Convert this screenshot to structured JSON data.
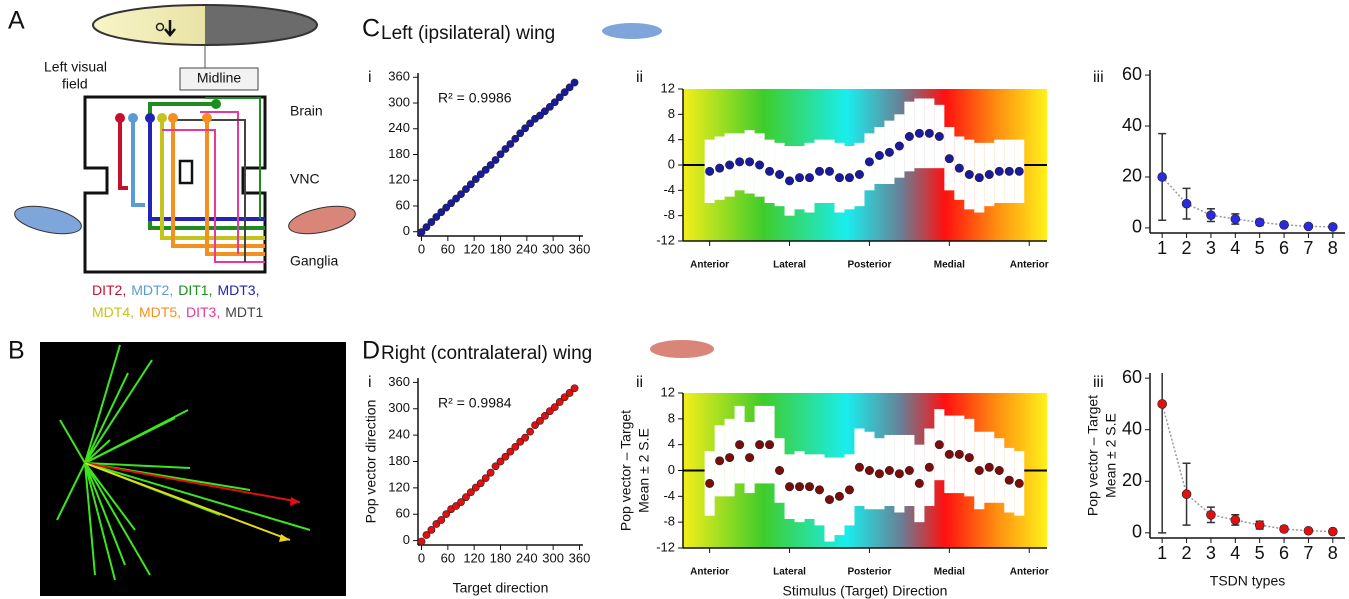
{
  "panel_labels": [
    "A",
    "B",
    "C",
    "D"
  ],
  "sections": [
    {
      "title": "Left (ipsilateral) wing"
    },
    {
      "title": "Right (contralateral) wing"
    }
  ],
  "subpanel_labels": [
    "i",
    "ii",
    "iii"
  ],
  "diagram": {
    "visual_field": [
      "Left  visual",
      "field"
    ],
    "midline": "Midline",
    "regions": [
      "Brain",
      "VNC",
      "Ganglia"
    ],
    "neurons": [
      [
        {
          "label": "DIT2,",
          "color": "#c8102e"
        },
        {
          "label": "MDT2,",
          "color": "#5b9bd5"
        },
        {
          "label": "DIT1,",
          "color": "#1e8c1e"
        },
        {
          "label": "MDT3,",
          "color": "#2323b8"
        }
      ],
      [
        {
          "label": "MDT4,",
          "color": "#c4c41c"
        },
        {
          "label": "MDT5,",
          "color": "#f39020"
        },
        {
          "label": "DIT3,",
          "color": "#e6399b"
        },
        {
          "label": "MDT1",
          "color": "#444444"
        }
      ]
    ]
  },
  "chart_data": [
    {
      "type": "scatter",
      "annotation": "R² = 0.9986",
      "color": "#1a1a9c",
      "x": [
        0,
        11.25,
        22.5,
        33.75,
        45,
        56.25,
        67.5,
        78.75,
        90,
        101.25,
        112.5,
        123.75,
        135,
        146.25,
        157.5,
        168.75,
        180,
        191.25,
        202.5,
        213.75,
        225,
        236.25,
        247.5,
        258.75,
        270,
        281.25,
        292.5,
        303.75,
        315,
        326.25,
        337.5,
        348.75
      ],
      "values": [
        -1,
        10.75,
        22.5,
        34.25,
        45.5,
        56.25,
        66.5,
        77.25,
        87.5,
        99.25,
        110.5,
        122.75,
        134,
        144.25,
        155.5,
        167.25,
        180.5,
        192.75,
        204.5,
        216.75,
        229.5,
        241.25,
        252.5,
        263.25,
        271,
        280.75,
        291,
        301.75,
        313.5,
        325.25,
        336.5,
        347.75
      ],
      "xlim": [
        -8,
        368
      ],
      "ylim": [
        -10,
        370
      ],
      "xticks": [
        0,
        60,
        120,
        180,
        240,
        300,
        360
      ],
      "yticks": [
        0,
        60,
        120,
        180,
        240,
        300,
        360
      ]
    },
    {
      "type": "dot_range",
      "color": "#1a1a9c",
      "x": [
        0,
        11.25,
        22.5,
        33.75,
        45,
        56.25,
        67.5,
        78.75,
        90,
        101.25,
        112.5,
        123.75,
        135,
        146.25,
        157.5,
        168.75,
        180,
        191.25,
        202.5,
        213.75,
        225,
        236.25,
        247.5,
        258.75,
        270,
        281.25,
        292.5,
        303.75,
        315,
        326.25,
        337.5,
        348.75
      ],
      "values": [
        -1,
        -0.5,
        0,
        0.5,
        0.5,
        0,
        -1,
        -1.5,
        -2.5,
        -2,
        -2,
        -1,
        -1,
        -2,
        -2,
        -1.5,
        0.5,
        1.5,
        2,
        3,
        4.5,
        5,
        5,
        4.5,
        1,
        -0.5,
        -1.5,
        -2,
        -1.5,
        -1,
        -1,
        -1
      ],
      "errors": [
        5,
        5,
        5,
        4.5,
        5,
        5,
        5,
        5,
        5.5,
        5,
        5.5,
        5,
        5,
        5.5,
        5,
        5,
        4.5,
        4.5,
        5,
        5,
        5.5,
        5.5,
        5.5,
        5,
        5,
        5,
        5.5,
        5.5,
        5,
        5,
        5,
        5
      ],
      "xlim": [
        -30,
        380
      ],
      "ylim": [
        -12,
        12
      ],
      "xticks": [
        {
          "value": 0,
          "label": "Anterior"
        },
        {
          "value": 90,
          "label": "Lateral"
        },
        {
          "value": 180,
          "label": "Posterior"
        },
        {
          "value": 270,
          "label": "Medial"
        },
        {
          "value": 360,
          "label": "Anterior"
        }
      ],
      "yticks": [
        -12,
        -8,
        -4,
        0,
        4,
        8,
        12
      ]
    },
    {
      "type": "line",
      "color": "#2a2adf",
      "categories": [
        "1",
        "2",
        "3",
        "4",
        "5",
        "6",
        "7",
        "8"
      ],
      "values": [
        20,
        9.5,
        5,
        3.5,
        2.2,
        1.2,
        0.6,
        0.4
      ],
      "errors": [
        17,
        6,
        2.5,
        2,
        1.2,
        0.9,
        0.6,
        0.4
      ],
      "ylim": [
        -2,
        62
      ],
      "yticks": [
        0,
        20,
        40,
        60
      ]
    },
    {
      "type": "scatter",
      "annotation": "R² = 0.9984",
      "color": "#e01010",
      "xlabel": "Target direction",
      "ylabel": "Pop vector direction",
      "x": [
        0,
        11.25,
        22.5,
        33.75,
        45,
        56.25,
        67.5,
        78.75,
        90,
        101.25,
        112.5,
        123.75,
        135,
        146.25,
        157.5,
        168.75,
        180,
        191.25,
        202.5,
        213.75,
        225,
        236.25,
        247.5,
        258.75,
        270,
        281.25,
        292.5,
        303.75,
        315,
        326.25,
        337.5,
        348.75
      ],
      "values": [
        -2,
        12.75,
        24.5,
        37.75,
        47,
        60.25,
        71.5,
        78.75,
        87.5,
        98.75,
        110,
        120.75,
        130.5,
        142.25,
        154.5,
        169.25,
        180,
        190.75,
        202.5,
        213.25,
        225,
        234.25,
        248,
        262.75,
        272.5,
        283.75,
        294.5,
        303.75,
        315.5,
        326.25,
        336,
        346.75
      ],
      "xlim": [
        -8,
        368
      ],
      "ylim": [
        -10,
        370
      ],
      "xticks": [
        0,
        60,
        120,
        180,
        240,
        300,
        360
      ],
      "yticks": [
        0,
        60,
        120,
        180,
        240,
        300,
        360
      ]
    },
    {
      "type": "dot_range",
      "color": "#7a0c0c",
      "xlabel": "Stimulus (Target) Direction",
      "ylabel": [
        "Pop vector – Target",
        "Mean ± 2 S.E"
      ],
      "x": [
        0,
        11.25,
        22.5,
        33.75,
        45,
        56.25,
        67.5,
        78.75,
        90,
        101.25,
        112.5,
        123.75,
        135,
        146.25,
        157.5,
        168.75,
        180,
        191.25,
        202.5,
        213.75,
        225,
        236.25,
        247.5,
        258.75,
        270,
        281.25,
        292.5,
        303.75,
        315,
        326.25,
        337.5,
        348.75
      ],
      "values": [
        -2,
        1.5,
        2,
        4,
        2,
        4,
        4,
        0,
        -2.5,
        -2.5,
        -2.5,
        -3,
        -4.5,
        -4,
        -3,
        0.5,
        0,
        -0.5,
        0,
        -0.5,
        0,
        -2,
        0.5,
        4,
        2.5,
        2.5,
        2,
        0,
        0.5,
        0,
        -1.5,
        -2
      ],
      "errors": [
        5,
        5.5,
        6,
        6,
        5.5,
        6,
        6,
        5,
        5,
        5.5,
        5,
        5.5,
        6.5,
        6,
        5.5,
        6,
        6,
        5.5,
        5.5,
        6,
        5.5,
        6,
        6,
        5.5,
        6,
        6,
        6,
        6,
        5.5,
        5,
        5,
        5
      ],
      "xlim": [
        -30,
        380
      ],
      "ylim": [
        -12,
        12
      ],
      "xticks": [
        {
          "value": 0,
          "label": "Anterior"
        },
        {
          "value": 90,
          "label": "Lateral"
        },
        {
          "value": 180,
          "label": "Posterior"
        },
        {
          "value": 270,
          "label": "Medial"
        },
        {
          "value": 360,
          "label": "Anterior"
        }
      ],
      "yticks": [
        -12,
        -8,
        -4,
        0,
        4,
        8,
        12
      ]
    },
    {
      "type": "line",
      "color": "#e01010",
      "xlabel": "TSDN types",
      "ylabel": [
        "Pop vector – Target",
        "Mean ± 2 S.E"
      ],
      "categories": [
        "1",
        "2",
        "3",
        "4",
        "5",
        "6",
        "7",
        "8"
      ],
      "values": [
        50,
        15,
        7,
        5,
        3,
        1.5,
        0.8,
        0.5
      ],
      "errors": [
        50,
        12,
        3,
        2,
        1.5,
        1,
        0.6,
        0.4
      ],
      "ylim": [
        -2,
        62
      ],
      "yticks": [
        0,
        20,
        40,
        60
      ]
    }
  ]
}
